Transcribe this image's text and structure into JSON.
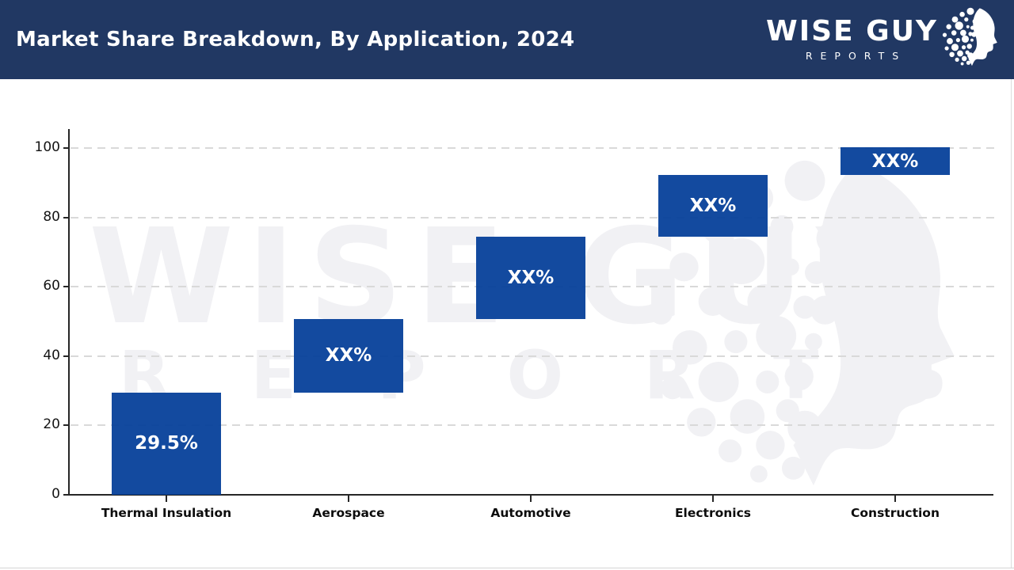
{
  "header": {
    "title": "Market Share Breakdown, By Application, 2024"
  },
  "logo": {
    "line1": "WISE GUY",
    "line2": "REPORTS"
  },
  "watermark": {
    "line1": "WISE GUY",
    "line2": "REPORTS"
  },
  "colors": {
    "header_bg": "#213863",
    "bar": "#06409a",
    "grid": "#d9d9d9",
    "axis": "#262626",
    "bar_label": "#ffffff",
    "watermark": "#f1f1f4"
  },
  "chart_data": {
    "type": "bar",
    "subtype": "floating-waterfall",
    "title": "Market Share Breakdown, By Application, 2024",
    "xlabel": "",
    "ylabel": "",
    "categories": [
      "Thermal Insulation",
      "Aerospace",
      "Automotive",
      "Electronics",
      "Construction"
    ],
    "segments": [
      {
        "category": "Thermal Insulation",
        "start": 0,
        "end": 29.5,
        "label": "29.5%"
      },
      {
        "category": "Aerospace",
        "start": 29.5,
        "end": 50.7,
        "label": "XX%"
      },
      {
        "category": "Automotive",
        "start": 50.7,
        "end": 74.4,
        "label": "XX%"
      },
      {
        "category": "Electronics",
        "start": 74.4,
        "end": 92.2,
        "label": "XX%"
      },
      {
        "category": "Construction",
        "start": 92.2,
        "end": 100.2,
        "label": "XX%"
      }
    ],
    "yticks": [
      0,
      20,
      40,
      60,
      80,
      100
    ],
    "ylim": [
      0,
      105
    ],
    "grid": "horizontal-dashed",
    "legend": "none"
  }
}
